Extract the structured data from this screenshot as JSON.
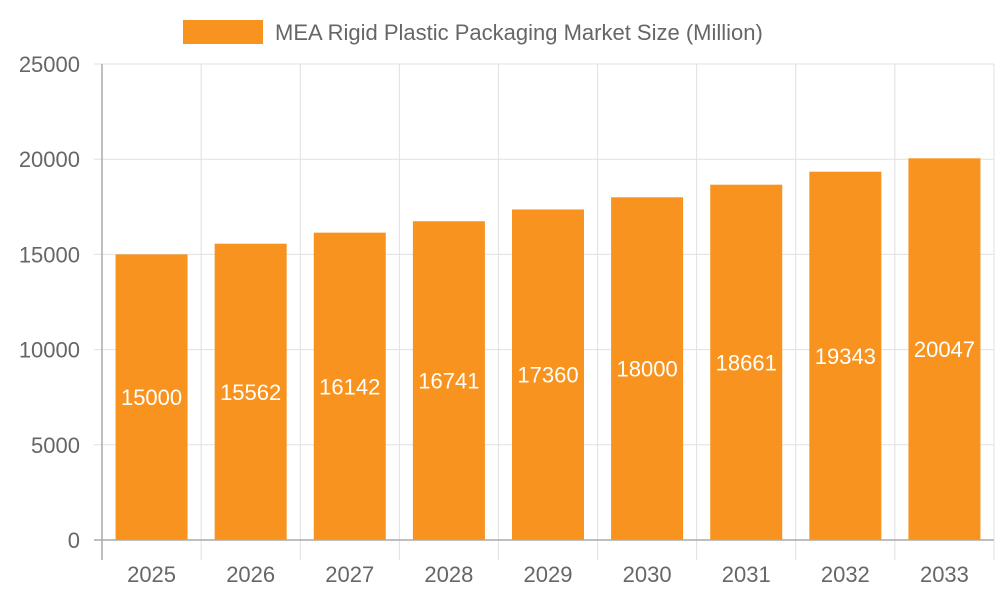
{
  "chart_data": {
    "type": "bar",
    "title": "",
    "xlabel": "",
    "ylabel": "",
    "categories": [
      "2025",
      "2026",
      "2027",
      "2028",
      "2029",
      "2030",
      "2031",
      "2032",
      "2033"
    ],
    "series": [
      {
        "name": "MEA Rigid Plastic Packaging Market Size (Million)",
        "values": [
          15000,
          15562,
          16142,
          16741,
          17360,
          18000,
          18661,
          19343,
          20047
        ],
        "color": "#f7931e"
      }
    ],
    "ylim": [
      0,
      25000
    ],
    "yticks": [
      "0",
      "5000",
      "10000",
      "15000",
      "20000",
      "25000"
    ],
    "grid": true,
    "legend_position": "top",
    "data_labels": true
  }
}
